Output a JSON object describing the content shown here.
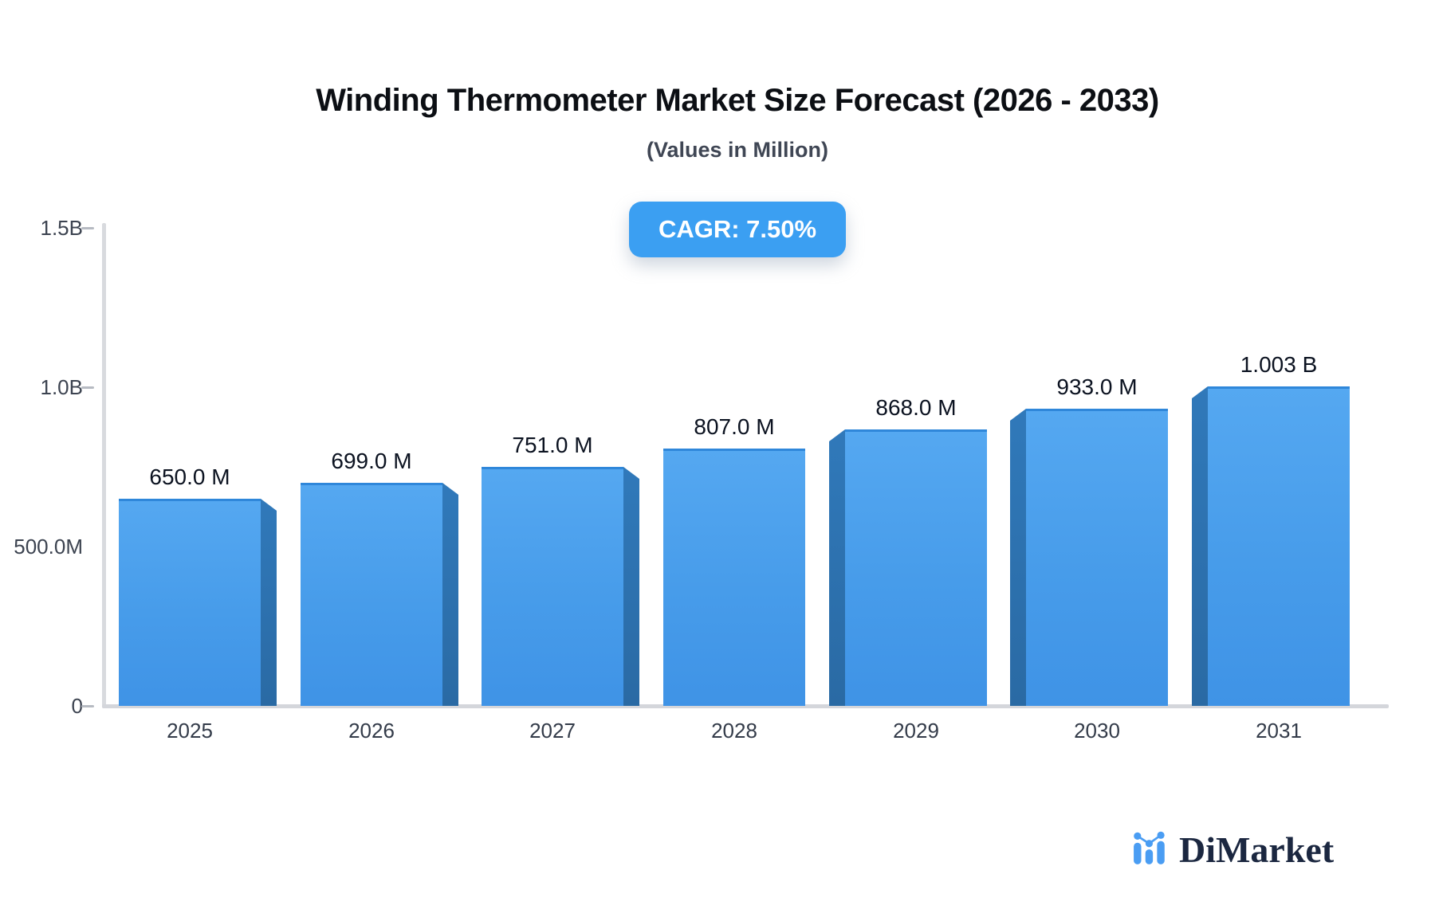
{
  "header": {
    "title": "Winding Thermometer Market Size Forecast (2026 - 2033)",
    "subtitle": "(Values in Million)",
    "cagr_badge": "CAGR: 7.50%"
  },
  "chart_data": {
    "type": "bar",
    "title": "Winding Thermometer Market Size Forecast (2026 - 2033)",
    "subtitle": "(Values in Million)",
    "unit": "Million USD",
    "cagr_percent": 7.5,
    "categories": [
      "2025",
      "2026",
      "2027",
      "2028",
      "2029",
      "2030",
      "2031"
    ],
    "values": [
      650.0,
      699.0,
      751.0,
      807.0,
      868.0,
      933.0,
      1003.0
    ],
    "bar_labels": [
      "650.0 M",
      "699.0 M",
      "751.0 M",
      "807.0 M",
      "868.0 M",
      "933.0 M",
      "1.003 B"
    ],
    "xlabel": "",
    "ylabel": "",
    "ylim": [
      0,
      1500
    ],
    "grid": false,
    "legend": "none",
    "y_ticks": [
      {
        "label": "1.5B",
        "value": 1500,
        "tick": true
      },
      {
        "label": "1.0B",
        "value": 1000,
        "tick": true
      },
      {
        "label": "500.0M",
        "value": 500,
        "tick": false
      },
      {
        "label": "0",
        "value": 0,
        "tick": true
      }
    ],
    "colors": {
      "bar_face": "#4aa0ee",
      "bar_side": "#2d72b0",
      "bar_top_edge": "#2f87da",
      "axis": "#d6d8dd",
      "badge": "#3b9ff2"
    }
  },
  "logo": {
    "name": "DiMarket"
  }
}
